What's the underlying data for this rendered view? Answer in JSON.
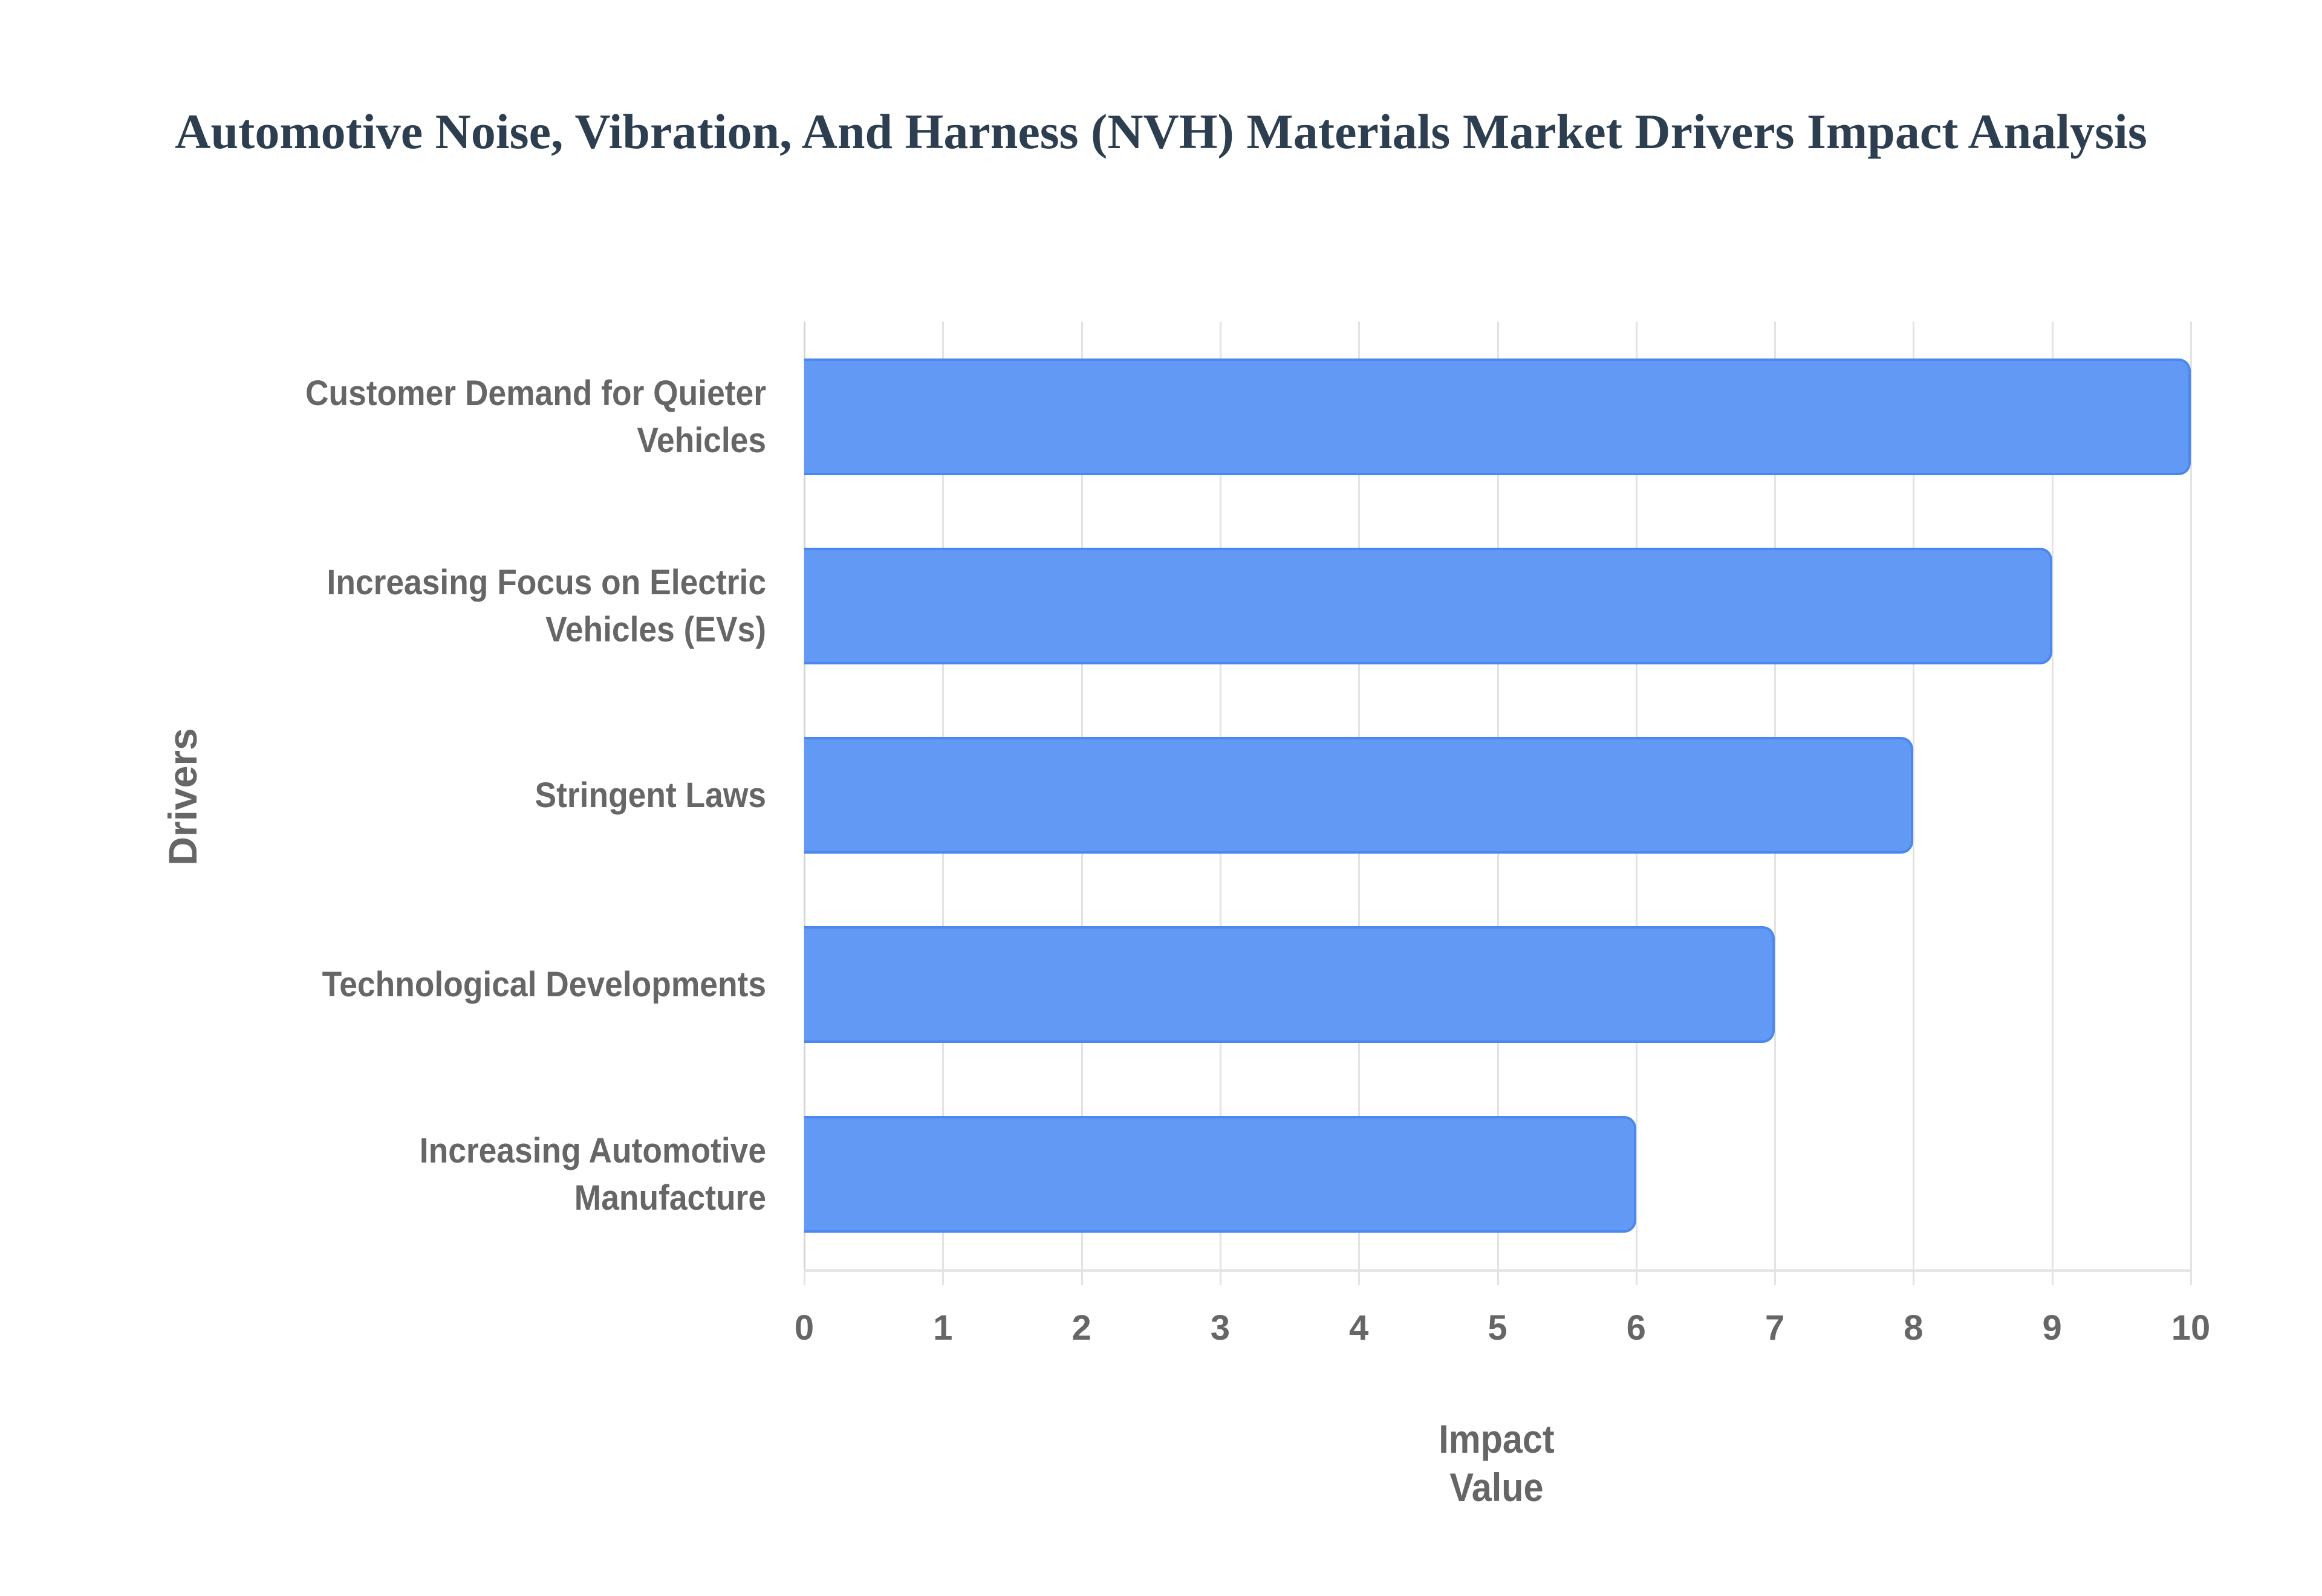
{
  "chart": {
    "title": "Automotive Noise, Vibration, And Harness (NVH) Materials Market Drivers Impact Analysis",
    "xlabel": "Impact Value",
    "ylabel": "Drivers",
    "x_ticks": [
      "0",
      "1",
      "2",
      "3",
      "4",
      "5",
      "6",
      "7",
      "8",
      "9",
      "10"
    ],
    "categories": [
      {
        "line1": "Customer Demand for Quieter",
        "line2": "Vehicles"
      },
      {
        "line1": "Increasing Focus on Electric",
        "line2": "Vehicles (EVs)"
      },
      {
        "line1": "Stringent Laws",
        "line2": ""
      },
      {
        "line1": "Technological Developments",
        "line2": ""
      },
      {
        "line1": "Increasing Automotive",
        "line2": "Manufacture"
      }
    ],
    "colors": {
      "bar_fill": "#6199f5",
      "bar_border": "#4a88f0",
      "title": "#2c3e50",
      "text": "#666666"
    }
  },
  "chart_data": {
    "type": "bar",
    "orientation": "horizontal",
    "title": "Automotive Noise, Vibration, And Harness (NVH) Materials Market Drivers Impact Analysis",
    "xlabel": "Impact Value",
    "ylabel": "Drivers",
    "categories": [
      "Customer Demand for Quieter Vehicles",
      "Increasing Focus on Electric Vehicles (EVs)",
      "Stringent Laws",
      "Technological Developments",
      "Increasing Automotive Manufacture"
    ],
    "values": [
      10,
      9,
      8,
      7,
      6
    ],
    "xlim": [
      0,
      10
    ],
    "x_ticks": [
      0,
      1,
      2,
      3,
      4,
      5,
      6,
      7,
      8,
      9,
      10
    ],
    "grid": true,
    "legend": null
  }
}
